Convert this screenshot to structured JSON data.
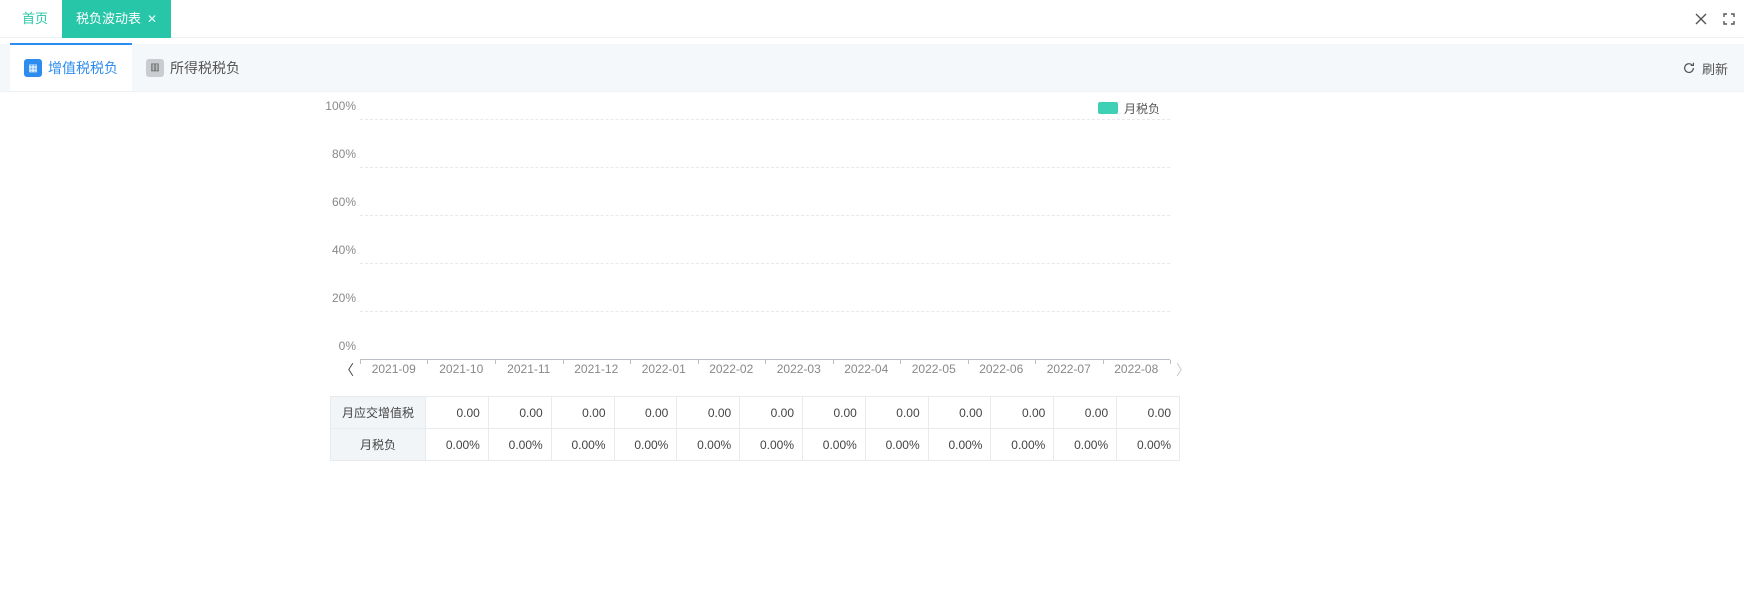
{
  "colors": {
    "accent_teal": "#27c6a8",
    "accent_blue": "#2d8cf0",
    "grid": "#e6e9ec",
    "axis": "#b9bfc5"
  },
  "top_tabs": {
    "home_label": "首页",
    "active_label": "税负波动表"
  },
  "sub_tabs": {
    "vat": "增值税税负",
    "income": "所得税税负"
  },
  "refresh_label": "刷新",
  "chart": {
    "type": "line",
    "legend_label": "月税负",
    "legend_color": "#3fd1b6",
    "y_ticks": [
      "0%",
      "20%",
      "40%",
      "60%",
      "80%",
      "100%"
    ],
    "ylim": [
      0,
      100
    ],
    "x_categories": [
      "2021-09",
      "2021-10",
      "2021-11",
      "2021-12",
      "2022-01",
      "2022-02",
      "2022-03",
      "2022-04",
      "2022-05",
      "2022-06",
      "2022-07",
      "2022-08"
    ],
    "series_values": [
      0,
      0,
      0,
      0,
      0,
      0,
      0,
      0,
      0,
      0,
      0,
      0
    ],
    "background": "#ffffff"
  },
  "table": {
    "row1_header": "月应交增值税",
    "row1_values": [
      "0.00",
      "0.00",
      "0.00",
      "0.00",
      "0.00",
      "0.00",
      "0.00",
      "0.00",
      "0.00",
      "0.00",
      "0.00",
      "0.00"
    ],
    "row2_header": "月税负",
    "row2_values": [
      "0.00%",
      "0.00%",
      "0.00%",
      "0.00%",
      "0.00%",
      "0.00%",
      "0.00%",
      "0.00%",
      "0.00%",
      "0.00%",
      "0.00%",
      "0.00%"
    ]
  }
}
